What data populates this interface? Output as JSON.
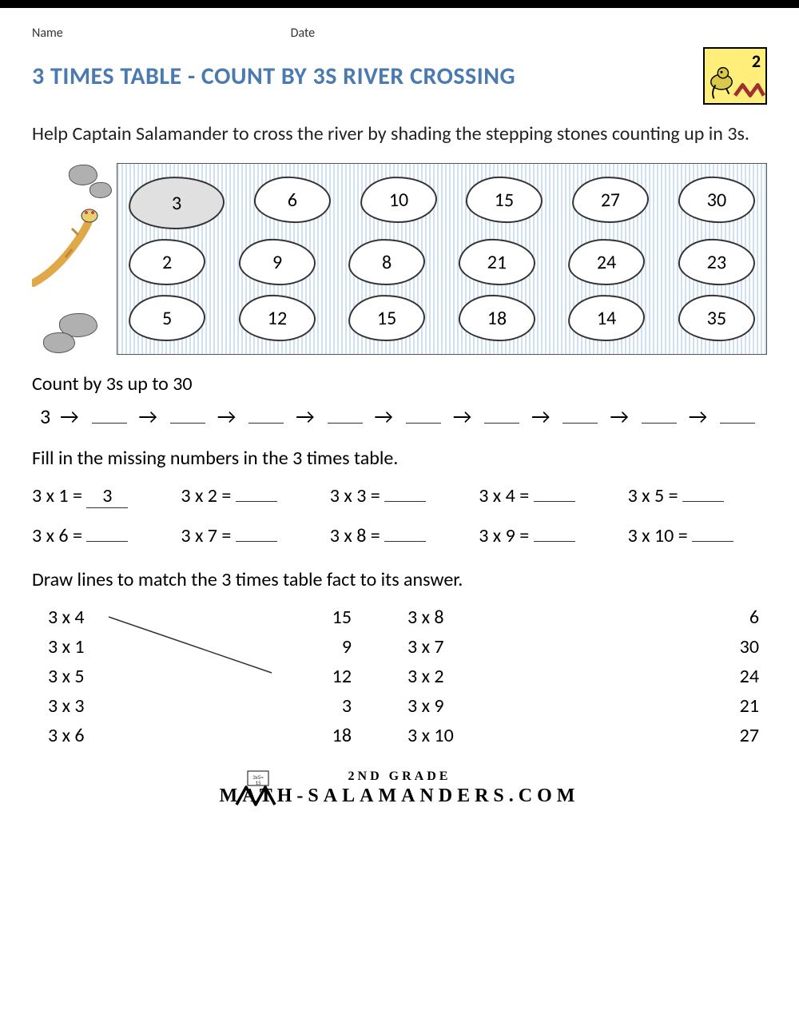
{
  "header": {
    "name_label": "Name",
    "date_label": "Date"
  },
  "title": "3 TIMES TABLE - COUNT BY 3S RIVER CROSSING",
  "logo": {
    "grade_number": "2"
  },
  "instruction1": "Help Captain Salamander to cross the river by shading the stepping stones counting up in 3s.",
  "river": {
    "rows": [
      [
        "3",
        "6",
        "10",
        "15",
        "27",
        "30"
      ],
      [
        "2",
        "9",
        "8",
        "21",
        "24",
        "23"
      ],
      [
        "5",
        "12",
        "15",
        "18",
        "14",
        "35"
      ]
    ],
    "first_stone_shaded": true
  },
  "count_by": {
    "label": "Count by 3s up to 30",
    "start": "3",
    "blanks": 9,
    "arrow": "→"
  },
  "fill_in": {
    "label": "Fill in the missing numbers in the 3 times table.",
    "cells": [
      {
        "q": "3 x 1 =",
        "a": "3"
      },
      {
        "q": "3 x 2 =",
        "a": ""
      },
      {
        "q": "3 x 3 =",
        "a": ""
      },
      {
        "q": "3 x 4 =",
        "a": ""
      },
      {
        "q": "3 x 5 =",
        "a": ""
      },
      {
        "q": "3 x 6 =",
        "a": ""
      },
      {
        "q": "3 x 7 =",
        "a": ""
      },
      {
        "q": "3 x 8 =",
        "a": ""
      },
      {
        "q": "3 x 9 =",
        "a": ""
      },
      {
        "q": "3 x 10 =",
        "a": ""
      }
    ]
  },
  "match": {
    "label": "Draw lines to match the 3 times table fact to its answer.",
    "left": [
      {
        "fact": "3 x 4",
        "ans": "15"
      },
      {
        "fact": "3 x 1",
        "ans": "9"
      },
      {
        "fact": "3 x 5",
        "ans": "12"
      },
      {
        "fact": "3 x 3",
        "ans": "3"
      },
      {
        "fact": "3 x 6",
        "ans": "18"
      }
    ],
    "right": [
      {
        "fact": "3 x 8",
        "ans": "6"
      },
      {
        "fact": "3 x 7",
        "ans": "30"
      },
      {
        "fact": "3 x 2",
        "ans": "24"
      },
      {
        "fact": "3 x 9",
        "ans": "21"
      },
      {
        "fact": "3 x 10",
        "ans": "27"
      }
    ],
    "example_line": {
      "from_row": 0,
      "to_row": 2
    }
  },
  "footer": {
    "line1": "2ND GRADE",
    "line2": "MATH-SALAMANDERS.COM"
  },
  "colors": {
    "title": "#4a7ab0",
    "logo_bg": "#ffef7a",
    "river_stripe_a": "#cfe0f2",
    "river_stripe_b": "#ffffff",
    "rock_fill": "#b0b0b0",
    "text": "#222222"
  }
}
